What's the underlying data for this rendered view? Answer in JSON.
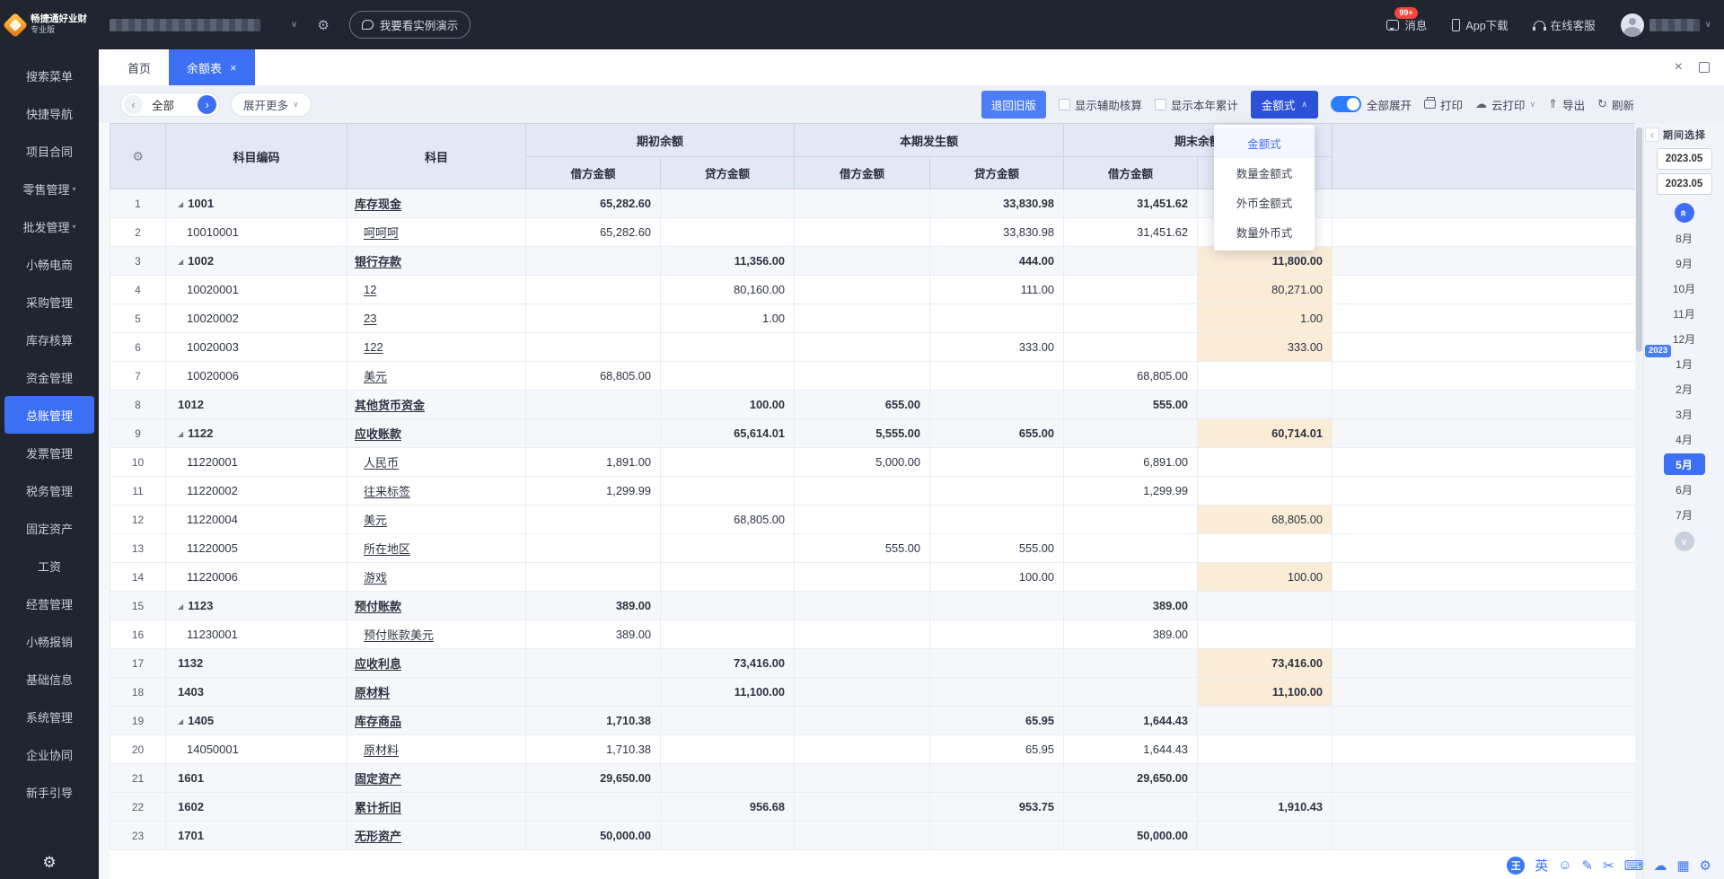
{
  "app": {
    "logo_title": "畅捷通好业财",
    "logo_subtitle": "专业版"
  },
  "topbar": {
    "demo_label": "我要看实例演示",
    "messages_label": "消息",
    "messages_badge": "99+",
    "app_download_label": "App下载",
    "online_service_label": "在线客服"
  },
  "tabs": {
    "home": "首页",
    "balance": "余额表"
  },
  "toolbar": {
    "scope_value": "全部",
    "expand_more_label": "展开更多",
    "back_old_label": "退回旧版",
    "show_aux_label": "显示辅助核算",
    "show_ytd_label": "显示本年累计",
    "format_label": "金额式",
    "expand_all_label": "全部展开",
    "print_label": "打印",
    "cloud_print_label": "云打印",
    "export_label": "导出",
    "refresh_label": "刷新"
  },
  "format_menu": {
    "items": [
      "金额式",
      "数量金额式",
      "外币金额式",
      "数量外币式"
    ],
    "selected_index": 0
  },
  "sidebar": {
    "items": [
      {
        "label": "搜索菜单"
      },
      {
        "label": "快捷导航"
      },
      {
        "label": "项目合同"
      },
      {
        "label": "零售管理",
        "arrow": true
      },
      {
        "label": "批发管理",
        "arrow": true
      },
      {
        "label": "小畅电商"
      },
      {
        "label": "采购管理"
      },
      {
        "label": "库存核算"
      },
      {
        "label": "资金管理"
      },
      {
        "label": "总账管理",
        "active": true
      },
      {
        "label": "发票管理"
      },
      {
        "label": "税务管理"
      },
      {
        "label": "固定资产"
      },
      {
        "label": "工资"
      },
      {
        "label": "经营管理"
      },
      {
        "label": "小畅报销"
      },
      {
        "label": "基础信息"
      },
      {
        "label": "系统管理"
      },
      {
        "label": "企业协同"
      },
      {
        "label": "新手引导"
      }
    ]
  },
  "table": {
    "col_code": "科目编码",
    "col_subject": "科目",
    "group_opening": "期初余额",
    "group_current": "本期发生额",
    "group_ending": "期末余额",
    "sub_debit": "借方金额",
    "sub_credit": "贷方金额",
    "rows": [
      {
        "n": 1,
        "code": "1001",
        "subject": "库存现金",
        "level": 1,
        "expand": true,
        "ib_d": "65,282.60",
        "cur_c": "33,830.98",
        "eb_d": "31,451.62"
      },
      {
        "n": 2,
        "code": "10010001",
        "subject": "呵呵呵",
        "level": 2,
        "ib_d": "65,282.60",
        "cur_c": "33,830.98",
        "eb_d": "31,451.62"
      },
      {
        "n": 3,
        "code": "1002",
        "subject": "银行存款",
        "level": 1,
        "expand": true,
        "ib_c": "11,356.00",
        "cur_c": "444.00",
        "eb_c": "11,800.00",
        "hl": true
      },
      {
        "n": 4,
        "code": "10020001",
        "subject": "12",
        "level": 2,
        "ib_c": "80,160.00",
        "cur_c": "111.00",
        "eb_c": "80,271.00",
        "hl": true
      },
      {
        "n": 5,
        "code": "10020002",
        "subject": "23",
        "level": 2,
        "ib_c": "1.00",
        "eb_c": "1.00",
        "hl": true
      },
      {
        "n": 6,
        "code": "10020003",
        "subject": "122",
        "level": 2,
        "cur_c": "333.00",
        "eb_c": "333.00",
        "hl": true
      },
      {
        "n": 7,
        "code": "10020006",
        "subject": "美元",
        "level": 2,
        "ib_d": "68,805.00",
        "eb_d": "68,805.00"
      },
      {
        "n": 8,
        "code": "1012",
        "subject": "其他货币资金",
        "level": 1,
        "ib_c": "100.00",
        "cur_d": "655.00",
        "eb_d": "555.00"
      },
      {
        "n": 9,
        "code": "1122",
        "subject": "应收账款",
        "level": 1,
        "expand": true,
        "ib_c": "65,614.01",
        "cur_d": "5,555.00",
        "cur_c": "655.00",
        "eb_c": "60,714.01",
        "hl": true
      },
      {
        "n": 10,
        "code": "11220001",
        "subject": "人民币",
        "level": 2,
        "ib_d": "1,891.00",
        "cur_d": "5,000.00",
        "eb_d": "6,891.00"
      },
      {
        "n": 11,
        "code": "11220002",
        "subject": "往来标签",
        "level": 2,
        "ib_d": "1,299.99",
        "eb_d": "1,299.99"
      },
      {
        "n": 12,
        "code": "11220004",
        "subject": "美元",
        "level": 2,
        "ib_c": "68,805.00",
        "eb_c": "68,805.00",
        "hl": true
      },
      {
        "n": 13,
        "code": "11220005",
        "subject": "所在地区",
        "level": 2,
        "cur_d": "555.00",
        "cur_c": "555.00"
      },
      {
        "n": 14,
        "code": "11220006",
        "subject": "游戏",
        "level": 2,
        "cur_c": "100.00",
        "eb_c": "100.00",
        "hl": true
      },
      {
        "n": 15,
        "code": "1123",
        "subject": "预付账款",
        "level": 1,
        "expand": true,
        "ib_d": "389.00",
        "eb_d": "389.00"
      },
      {
        "n": 16,
        "code": "11230001",
        "subject": "预付账款美元",
        "level": 2,
        "ib_d": "389.00",
        "eb_d": "389.00"
      },
      {
        "n": 17,
        "code": "1132",
        "subject": "应收利息",
        "level": 1,
        "ib_c": "73,416.00",
        "eb_c": "73,416.00",
        "hl": true
      },
      {
        "n": 18,
        "code": "1403",
        "subject": "原材料",
        "level": 1,
        "ib_c": "11,100.00",
        "eb_c": "11,100.00",
        "hl": true
      },
      {
        "n": 19,
        "code": "1405",
        "subject": "库存商品",
        "level": 1,
        "expand": true,
        "ib_d": "1,710.38",
        "cur_c": "65.95",
        "eb_d": "1,644.43"
      },
      {
        "n": 20,
        "code": "14050001",
        "subject": "原材料",
        "level": 2,
        "ib_d": "1,710.38",
        "cur_c": "65.95",
        "eb_d": "1,644.43"
      },
      {
        "n": 21,
        "code": "1601",
        "subject": "固定资产",
        "level": 1,
        "ib_d": "29,650.00",
        "eb_d": "29,650.00"
      },
      {
        "n": 22,
        "code": "1602",
        "subject": "累计折旧",
        "level": 1,
        "ib_c": "956.68",
        "cur_c": "953.75",
        "eb_c": "1,910.43"
      },
      {
        "n": 23,
        "code": "1701",
        "subject": "无形资产",
        "level": 1,
        "ib_d": "50,000.00",
        "eb_d": "50,000.00"
      }
    ]
  },
  "period_panel": {
    "title": "期间选择",
    "period_start": "2023.05",
    "period_end": "2023.05",
    "year_badge": "2023",
    "months": [
      "8月",
      "9月",
      "10月",
      "11月",
      "12月",
      "1月",
      "2月",
      "3月",
      "4月",
      "5月",
      "6月",
      "7月"
    ],
    "selected_month_index": 9
  },
  "taskbar": {
    "icons": [
      {
        "name": "input-method-icon",
        "glyph": "王",
        "style": "circle"
      },
      {
        "name": "english-lang-icon",
        "glyph": "英"
      },
      {
        "name": "emoji-icon",
        "glyph": "☺"
      },
      {
        "name": "pencil-icon",
        "glyph": "✎"
      },
      {
        "name": "scissors-icon",
        "glyph": "✂"
      },
      {
        "name": "keyboard-icon",
        "glyph": "⌨"
      },
      {
        "name": "cloud-icon",
        "glyph": "☁"
      },
      {
        "name": "grid-icon",
        "glyph": "▦"
      },
      {
        "name": "gear-icon",
        "glyph": "⚙"
      }
    ]
  },
  "colors": {
    "accent": "#3d6ff5",
    "highlight_cell": "#fbecd8",
    "badge_red": "#f5453d",
    "dark_bar": "#20252f"
  }
}
